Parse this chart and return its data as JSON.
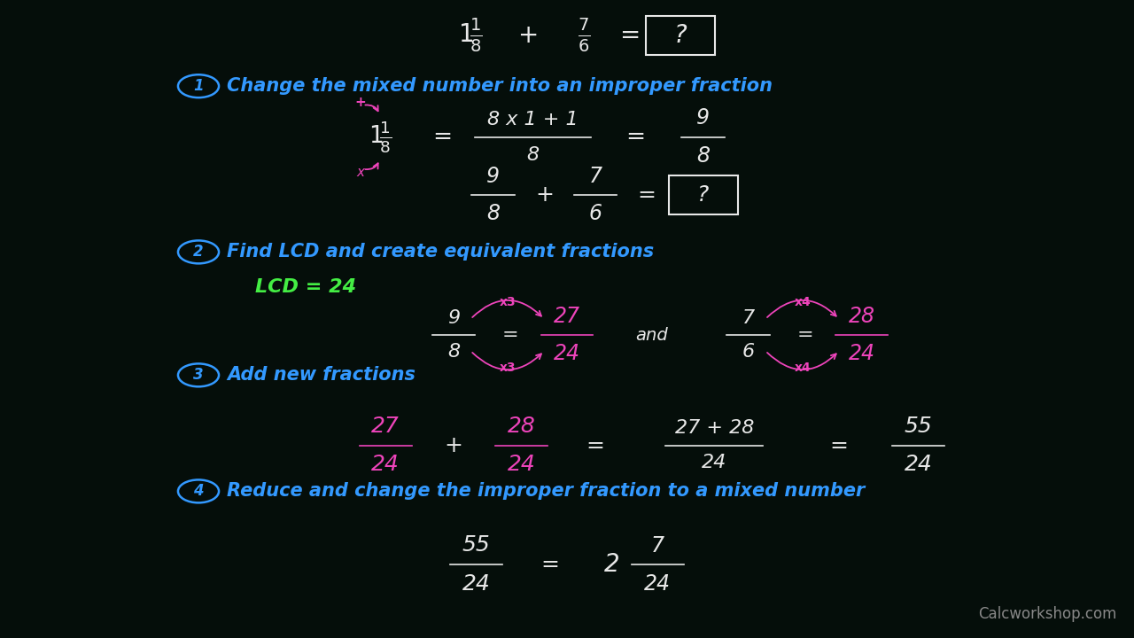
{
  "bg_color": "#050e0a",
  "blue_color": "#3399ff",
  "pink_color": "#ee44bb",
  "green_color": "#44ee44",
  "white_color": "#e8e8e8",
  "gray_color": "#888888",
  "watermark": "Calcworkshop.com",
  "step1_header": "Change the mixed number into an improper fraction",
  "step2_header": "Find LCD and create equivalent fractions",
  "step3_header": "Add new fractions",
  "step4_header": "Reduce and change the improper fraction to a mixed number"
}
